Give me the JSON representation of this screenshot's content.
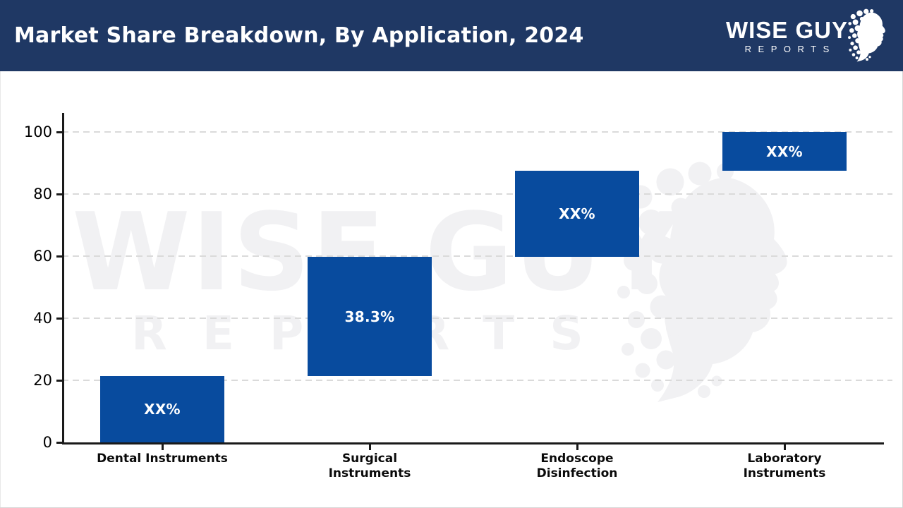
{
  "header": {
    "title": "Market Share Breakdown, By Application, 2024",
    "logo": {
      "line1": "WISE GUY",
      "line2": "REPORTS"
    }
  },
  "watermark": {
    "line1": "WISE GUY",
    "line2": "REPORTS"
  },
  "colors": {
    "header_bg": "#1F3864",
    "bar": "#084B9E",
    "bar_label": "#ffffff",
    "gridline": "#dadada",
    "axis": "#1a1a1a",
    "watermark": "#f1f1f3"
  },
  "chart_data": {
    "type": "bar",
    "subtype": "waterfall",
    "title": "Market Share Breakdown, By Application, 2024",
    "categories": [
      "Dental Instruments",
      "Surgical Instruments",
      "Endoscope Disinfection",
      "Laboratory Instruments"
    ],
    "category_lines": [
      [
        "Dental Instruments"
      ],
      [
        "Surgical",
        "Instruments"
      ],
      [
        "Endoscope",
        "Disinfection"
      ],
      [
        "Laboratory",
        "Instruments"
      ]
    ],
    "segments": [
      {
        "category": "Dental Instruments",
        "start": 0,
        "end": 21.4,
        "label": "XX%"
      },
      {
        "category": "Surgical Instruments",
        "start": 21.4,
        "end": 59.7,
        "label": "38.3%",
        "value": 38.3
      },
      {
        "category": "Endoscope Disinfection",
        "start": 59.7,
        "end": 87.4,
        "label": "XX%"
      },
      {
        "category": "Laboratory Instruments",
        "start": 87.4,
        "end": 100,
        "label": "XX%"
      }
    ],
    "ylim": [
      0,
      106
    ],
    "yticks": [
      0,
      20,
      40,
      60,
      80,
      100
    ],
    "grid": "horizontal-dashed",
    "legend": null
  }
}
